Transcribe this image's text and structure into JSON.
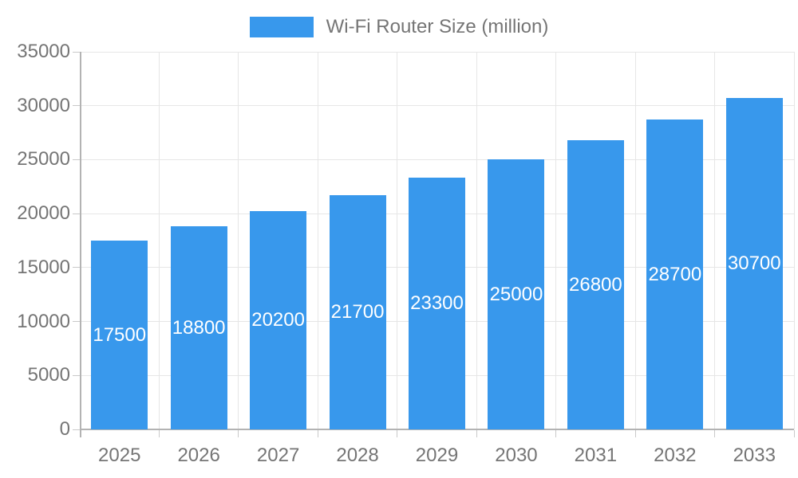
{
  "chart_data": {
    "type": "bar",
    "title": "Wi-Fi Router Size (million)",
    "legend": {
      "label": "Wi-Fi Router Size (million)",
      "position": "top-center"
    },
    "categories": [
      "2025",
      "2026",
      "2027",
      "2028",
      "2029",
      "2030",
      "2031",
      "2032",
      "2033"
    ],
    "series": [
      {
        "name": "Wi-Fi Router Size (million)",
        "values": [
          17500,
          18800,
          20200,
          21700,
          23300,
          25000,
          26800,
          28700,
          30700
        ]
      }
    ],
    "bar_value_labels": [
      "17500",
      "18800",
      "20200",
      "21700",
      "23300",
      "25000",
      "26800",
      "28700",
      "30700"
    ],
    "xlabel": "",
    "ylabel": "",
    "ylim": [
      0,
      35000
    ],
    "y_ticks": [
      0,
      5000,
      10000,
      15000,
      20000,
      25000,
      30000,
      35000
    ],
    "y_tick_labels": [
      "0",
      "5000",
      "10000",
      "15000",
      "20000",
      "25000",
      "30000",
      "35000"
    ],
    "grid": true,
    "value_labels_inside_bars": true,
    "colors": {
      "bar": "#3898EC",
      "axis_label": "#757575",
      "grid_line": "#e6e6e6",
      "axis_line": "#b3b3b3",
      "tick_line": "#c9c9c9",
      "value_label": "#ffffff",
      "background": "#ffffff"
    }
  }
}
